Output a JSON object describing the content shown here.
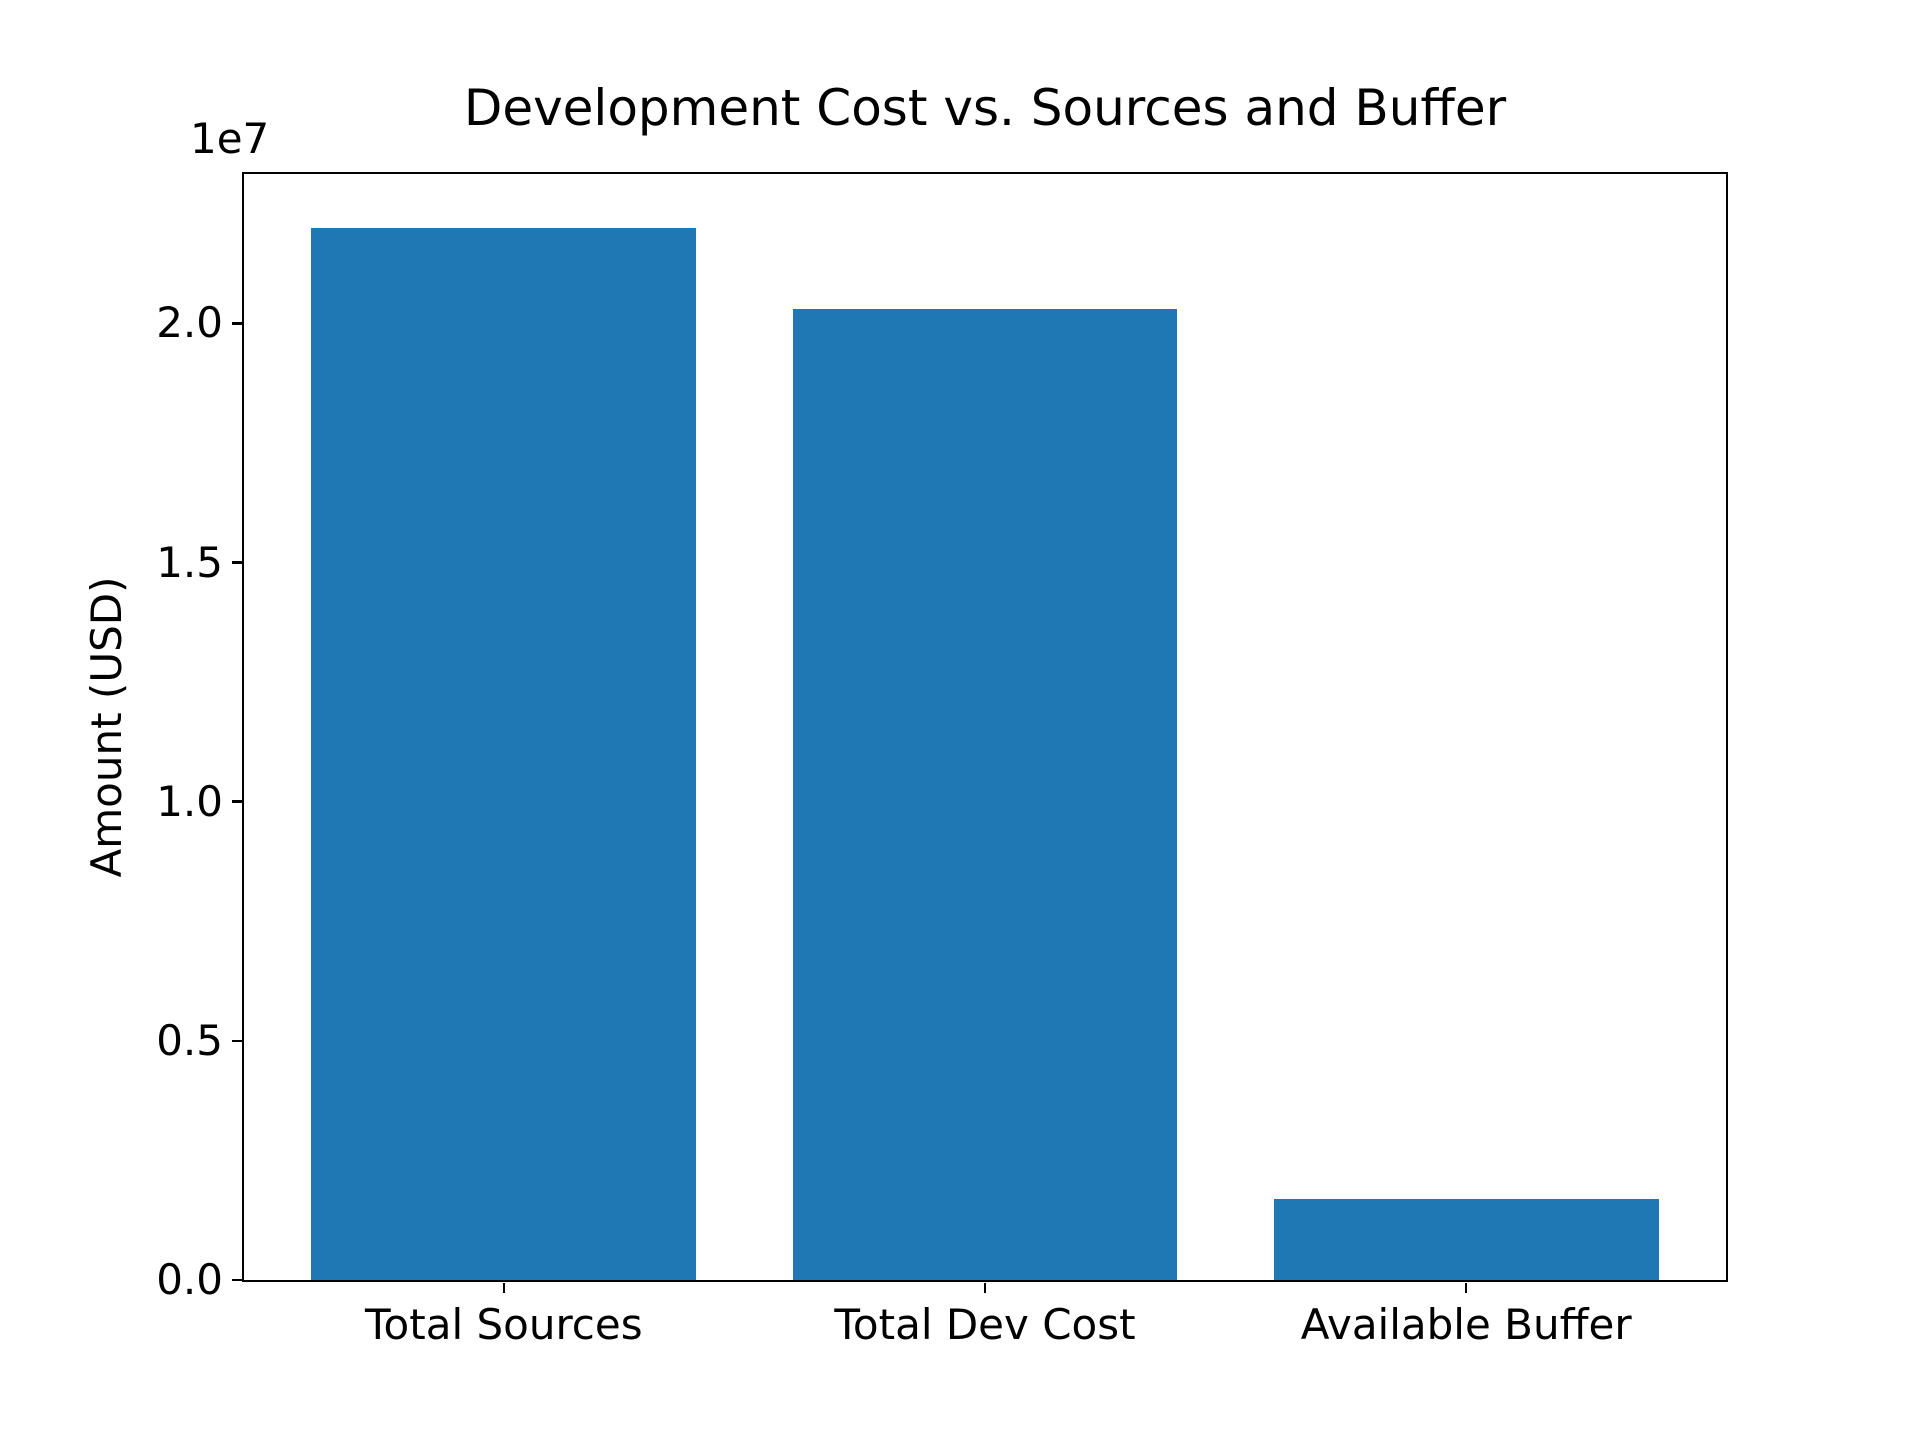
{
  "figure": {
    "background": "#ffffff",
    "text_color": "#000000",
    "axis_color": "#000000"
  },
  "chart_data": {
    "type": "bar",
    "title": "Development Cost vs. Sources and Buffer",
    "xlabel": "",
    "ylabel": "Amount (USD)",
    "offset_text": "1e7",
    "categories": [
      "Total Sources",
      "Total Dev Cost",
      "Available Buffer"
    ],
    "values": [
      22000000,
      20300000,
      1700000
    ],
    "bar_color": "#1f77b4",
    "bar_width_data_units": 0.8,
    "xlim": [
      -0.54,
      2.54
    ],
    "ylim": [
      0,
      23125000
    ],
    "yticks": {
      "values": [
        0,
        5000000,
        10000000,
        15000000,
        20000000
      ],
      "labels": [
        "0.0",
        "0.5",
        "1.0",
        "1.5",
        "2.0"
      ]
    },
    "grid": false,
    "legend_position": "none"
  }
}
